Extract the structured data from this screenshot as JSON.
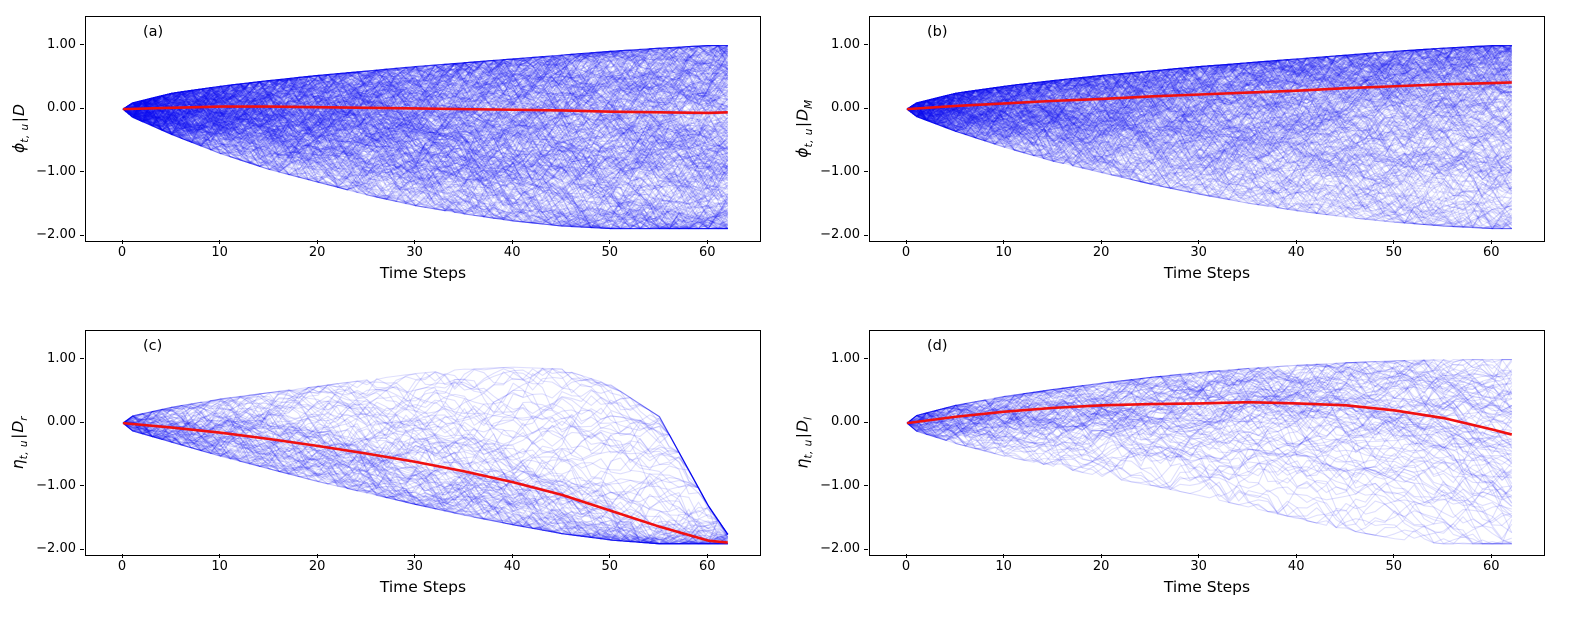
{
  "figure": {
    "background": "#ffffff",
    "n_panels": 4
  },
  "chart_data": [
    {
      "id": "a",
      "type": "line",
      "panel_label": "(a)",
      "ylabel": {
        "sym": "ϕ",
        "sub": "t, u",
        "sep": "|",
        "cond": "D",
        "cond_sub": ""
      },
      "xlabel": "Time Steps",
      "xlim": [
        -3.8,
        65.2
      ],
      "ylim": [
        -2.06,
        1.45
      ],
      "xticks": [
        0,
        10,
        20,
        30,
        40,
        50,
        60
      ],
      "xtick_labels": [
        "0",
        "10",
        "20",
        "30",
        "40",
        "50",
        "60"
      ],
      "yticks": [
        1.0,
        0.0,
        -1.0,
        -2.0
      ],
      "ytick_labels": [
        "1.00",
        "0.00",
        "−1.00",
        "−2.00"
      ],
      "x_ctrl": [
        0,
        5,
        10,
        15,
        20,
        25,
        30,
        35,
        40,
        45,
        50,
        55,
        60,
        62
      ],
      "mean": [
        0.0,
        0.02,
        0.04,
        0.04,
        0.03,
        0.02,
        0.01,
        0.0,
        -0.01,
        -0.02,
        -0.04,
        -0.05,
        -0.06,
        -0.05
      ],
      "mean_color": "#f01010",
      "ensemble": {
        "n_lines": 450,
        "color": "#0000f0",
        "alpha": 0.12,
        "sigma": 0.16,
        "drift": 0.022,
        "seed": 101,
        "upper": [
          0.06,
          0.25,
          0.36,
          0.45,
          0.53,
          0.6,
          0.67,
          0.73,
          0.79,
          0.85,
          0.91,
          0.96,
          1.0,
          1.0
        ],
        "lower": [
          -0.06,
          -0.4,
          -0.7,
          -0.95,
          -1.15,
          -1.35,
          -1.52,
          -1.65,
          -1.76,
          -1.84,
          -1.88,
          -1.88,
          -1.88,
          -1.88
        ]
      }
    },
    {
      "id": "b",
      "type": "line",
      "panel_label": "(b)",
      "ylabel": {
        "sym": "ϕ",
        "sub": "t, u",
        "sep": "|",
        "cond": "D",
        "cond_sub": "M"
      },
      "xlabel": "Time Steps",
      "xlim": [
        -3.8,
        65.2
      ],
      "ylim": [
        -2.06,
        1.45
      ],
      "xticks": [
        0,
        10,
        20,
        30,
        40,
        50,
        60
      ],
      "xtick_labels": [
        "0",
        "10",
        "20",
        "30",
        "40",
        "50",
        "60"
      ],
      "yticks": [
        1.0,
        0.0,
        -1.0,
        -2.0
      ],
      "ytick_labels": [
        "1.00",
        "0.00",
        "−1.00",
        "−2.00"
      ],
      "x_ctrl": [
        0,
        5,
        10,
        15,
        20,
        25,
        30,
        35,
        40,
        45,
        50,
        55,
        60,
        62
      ],
      "mean": [
        0.0,
        0.05,
        0.09,
        0.13,
        0.16,
        0.2,
        0.23,
        0.26,
        0.29,
        0.33,
        0.36,
        0.39,
        0.41,
        0.42
      ],
      "mean_color": "#f01010",
      "ensemble": {
        "n_lines": 400,
        "color": "#0000f0",
        "alpha": 0.11,
        "sigma": 0.16,
        "drift": 0.02,
        "seed": 202,
        "upper": [
          0.06,
          0.25,
          0.36,
          0.45,
          0.53,
          0.6,
          0.67,
          0.73,
          0.79,
          0.85,
          0.91,
          0.96,
          1.0,
          1.0
        ],
        "lower": [
          -0.06,
          -0.35,
          -0.6,
          -0.82,
          -1.0,
          -1.18,
          -1.34,
          -1.48,
          -1.6,
          -1.7,
          -1.78,
          -1.84,
          -1.88,
          -1.88
        ]
      }
    },
    {
      "id": "c",
      "type": "line",
      "panel_label": "(c)",
      "ylabel": {
        "sym": "η",
        "sub": "t, u",
        "sep": "|",
        "cond": "D",
        "cond_sub": "r"
      },
      "xlabel": "Time Steps",
      "xlim": [
        -3.8,
        65.2
      ],
      "ylim": [
        -2.06,
        1.45
      ],
      "xticks": [
        0,
        10,
        20,
        30,
        40,
        50,
        60
      ],
      "xtick_labels": [
        "0",
        "10",
        "20",
        "30",
        "40",
        "50",
        "60"
      ],
      "yticks": [
        1.0,
        0.0,
        -1.0,
        -2.0
      ],
      "ytick_labels": [
        "1.00",
        "0.00",
        "−1.00",
        "−2.00"
      ],
      "x_ctrl": [
        0,
        5,
        10,
        15,
        20,
        25,
        30,
        35,
        40,
        45,
        50,
        55,
        60,
        62
      ],
      "mean": [
        0.0,
        -0.07,
        -0.15,
        -0.25,
        -0.36,
        -0.48,
        -0.61,
        -0.76,
        -0.93,
        -1.13,
        -1.38,
        -1.63,
        -1.85,
        -1.88
      ],
      "mean_color": "#f01010",
      "ensemble": {
        "n_lines": 120,
        "color": "#0000f0",
        "alpha": 0.13,
        "sigma": 0.13,
        "drift": 0.012,
        "seed": 303,
        "upper": [
          0.08,
          0.25,
          0.38,
          0.48,
          0.58,
          0.68,
          0.78,
          0.85,
          0.88,
          0.85,
          0.6,
          0.1,
          -1.3,
          -1.75
        ],
        "lower": [
          -0.08,
          -0.3,
          -0.52,
          -0.72,
          -0.92,
          -1.1,
          -1.28,
          -1.45,
          -1.6,
          -1.74,
          -1.84,
          -1.9,
          -1.9,
          -1.9
        ]
      }
    },
    {
      "id": "d",
      "type": "line",
      "panel_label": "(d)",
      "ylabel": {
        "sym": "η",
        "sub": "t, u",
        "sep": "|",
        "cond": "D",
        "cond_sub": "l"
      },
      "xlabel": "Time Steps",
      "xlim": [
        -3.8,
        65.2
      ],
      "ylim": [
        -2.06,
        1.45
      ],
      "xticks": [
        0,
        10,
        20,
        30,
        40,
        50,
        60
      ],
      "xtick_labels": [
        "0",
        "10",
        "20",
        "30",
        "40",
        "50",
        "60"
      ],
      "yticks": [
        1.0,
        0.0,
        -1.0,
        -2.0
      ],
      "ytick_labels": [
        "1.00",
        "0.00",
        "−1.00",
        "−2.00"
      ],
      "x_ctrl": [
        0,
        5,
        10,
        15,
        20,
        25,
        30,
        35,
        40,
        45,
        50,
        55,
        60,
        62
      ],
      "mean": [
        0.0,
        0.1,
        0.18,
        0.24,
        0.28,
        0.3,
        0.31,
        0.33,
        0.31,
        0.28,
        0.2,
        0.08,
        -0.1,
        -0.18
      ],
      "mean_color": "#f01010",
      "ensemble": {
        "n_lines": 120,
        "color": "#0000f0",
        "alpha": 0.13,
        "sigma": 0.13,
        "drift": 0.015,
        "seed": 404,
        "upper": [
          0.08,
          0.28,
          0.42,
          0.53,
          0.63,
          0.72,
          0.8,
          0.86,
          0.91,
          0.95,
          0.98,
          1.0,
          1.0,
          1.0
        ],
        "lower": [
          -0.08,
          -0.32,
          -0.52,
          -0.68,
          -0.84,
          -0.98,
          -1.14,
          -1.32,
          -1.5,
          -1.68,
          -1.82,
          -1.9,
          -1.9,
          -1.9
        ]
      }
    }
  ]
}
